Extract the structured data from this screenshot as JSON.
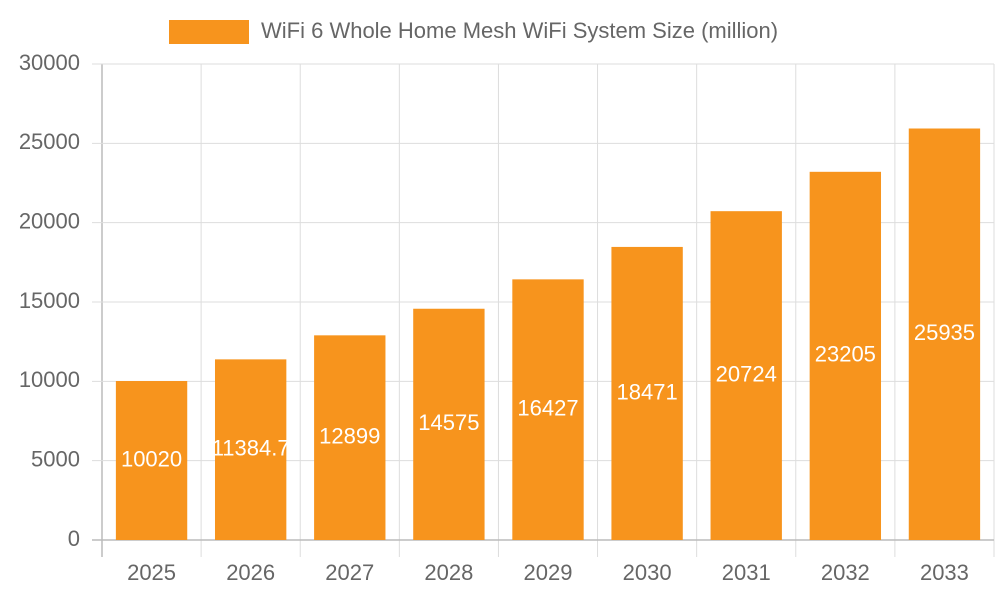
{
  "chart_data": {
    "type": "bar",
    "categories": [
      "2025",
      "2026",
      "2027",
      "2028",
      "2029",
      "2030",
      "2031",
      "2032",
      "2033"
    ],
    "series": [
      {
        "name": "WiFi 6 Whole Home Mesh WiFi System Size (million)",
        "color": "#f7941d",
        "values": [
          10020,
          11384.7,
          12899,
          14575,
          16427,
          18471,
          20724,
          23205,
          25935
        ]
      }
    ],
    "ylim": [
      0,
      30000
    ],
    "yticks": [
      0,
      5000,
      10000,
      15000,
      20000,
      25000,
      30000
    ],
    "grid": true,
    "legend": "top",
    "data_labels": true
  }
}
